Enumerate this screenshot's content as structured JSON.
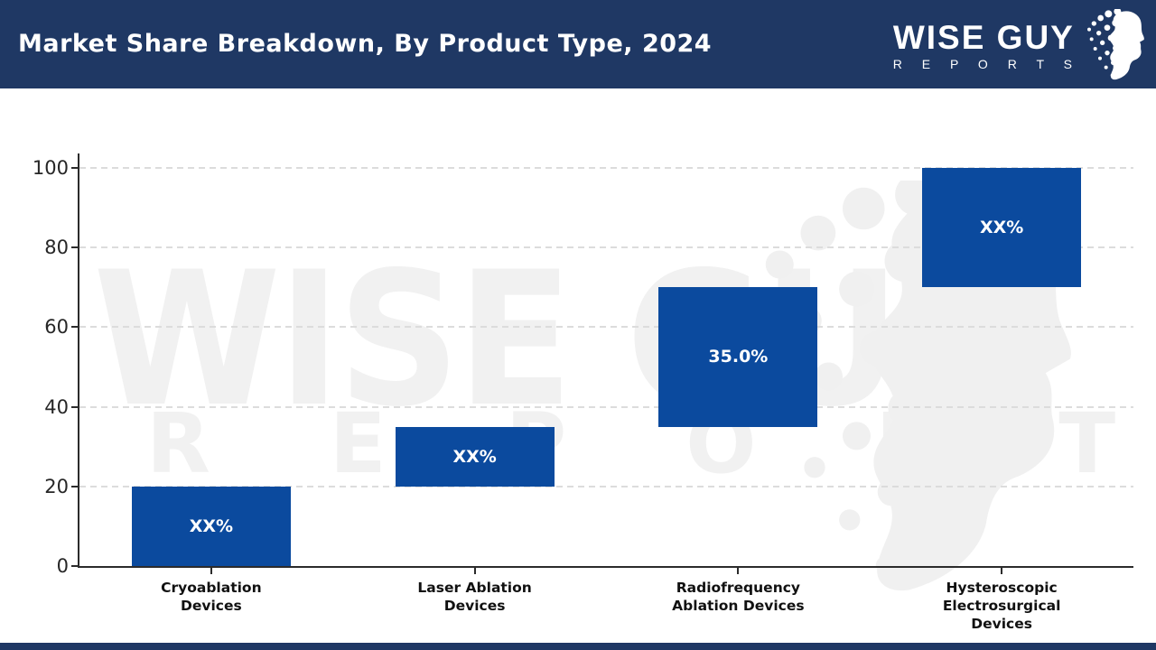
{
  "header": {
    "title": "Market Share Breakdown, By Product Type, 2024",
    "bg_color": "#1f3864",
    "logo": {
      "name": "WISE GUY",
      "reports": "R E P O R T S"
    }
  },
  "watermark": {
    "name": "WISE GUY",
    "reports": "R E P O R T S"
  },
  "chart_data": {
    "type": "bar",
    "variant": "floating-range-waterfall",
    "title": "Market Share Breakdown, By Product Type, 2024",
    "categories": [
      [
        "Cryoablation",
        "Devices"
      ],
      [
        "Laser Ablation",
        "Devices"
      ],
      [
        "Radiofrequency",
        "Ablation Devices"
      ],
      [
        "Hysteroscopic",
        "Electrosurgical",
        "Devices"
      ]
    ],
    "series": [
      {
        "name": "Market share (%)",
        "ranges": [
          {
            "from": 0,
            "to": 20
          },
          {
            "from": 20,
            "to": 35
          },
          {
            "from": 35,
            "to": 70
          },
          {
            "from": 70,
            "to": 100
          }
        ]
      }
    ],
    "bar_labels": [
      "XX%",
      "XX%",
      "35.0%",
      "XX%"
    ],
    "yticks": [
      0,
      20,
      40,
      60,
      80,
      100
    ],
    "ylim": [
      0,
      100
    ],
    "bar_color": "#0b4a9e",
    "grid": {
      "horizontal": true,
      "style": "dashed",
      "color": "#dcdcdc"
    },
    "legend": "none"
  }
}
